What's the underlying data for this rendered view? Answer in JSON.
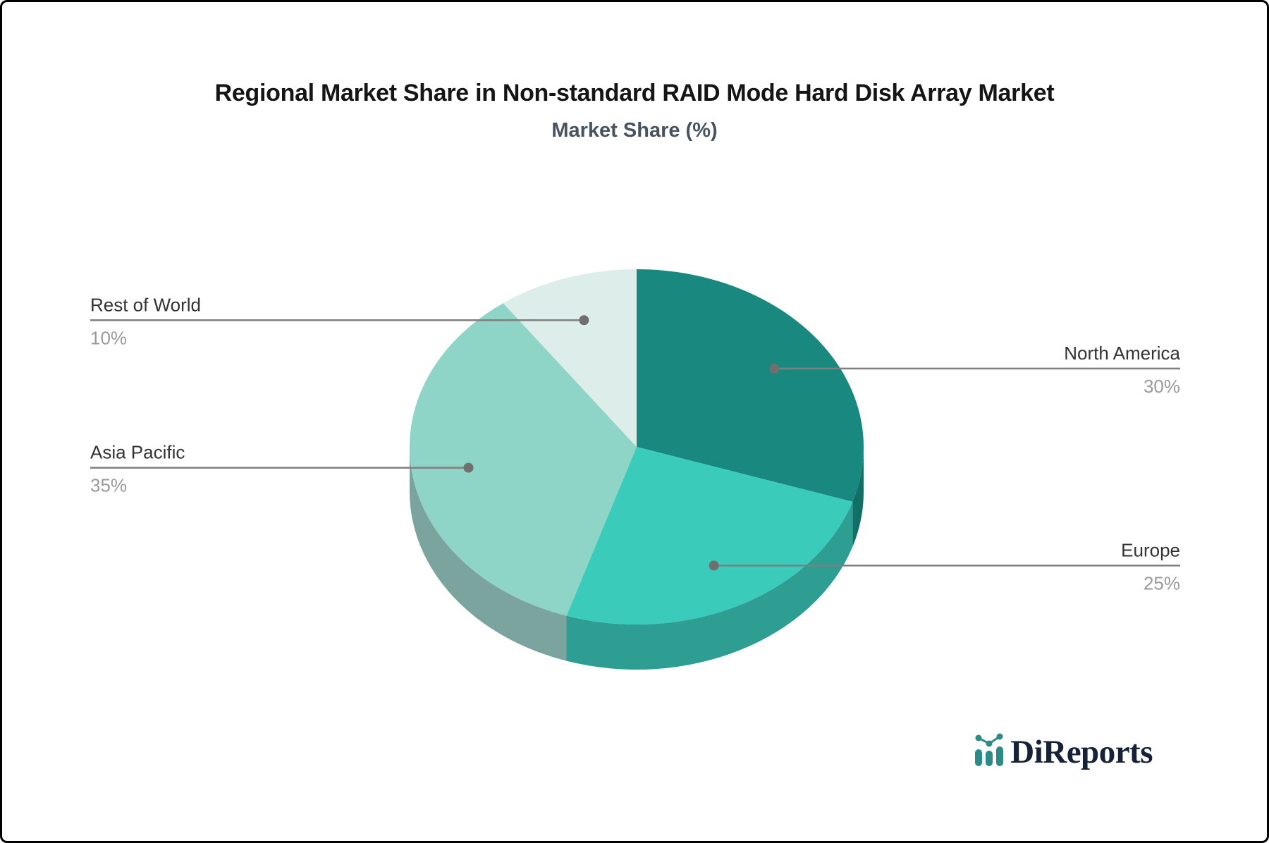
{
  "page": {
    "title": "Regional Market Share in Non-standard RAID Mode Hard Disk Array Market",
    "subtitle": "Market Share (%)"
  },
  "brand": {
    "logo_text": "DiReports",
    "logo_icon": "bar-line-chart-icon",
    "logo_text_color": "#152238",
    "logo_icon_color": "#2b8c87"
  },
  "chart_data": {
    "type": "pie",
    "title": "Regional Market Share in Non-standard RAID Mode Hard Disk Array Market",
    "subtitle": "Market Share (%)",
    "unit": "%",
    "effect": "3d",
    "direction": "clockwise",
    "start_angle_deg": 0,
    "legend_position": "callout-labels",
    "slices": [
      {
        "label": "North America",
        "value": 30,
        "display": "30%",
        "color": "#19897f",
        "side_color": "#116f67"
      },
      {
        "label": "Europe",
        "value": 25,
        "display": "25%",
        "color": "#3acbba",
        "side_color": "#2d9e91"
      },
      {
        "label": "Asia Pacific",
        "value": 35,
        "display": "35%",
        "color": "#8ed4c7",
        "side_color": "#7aa49d"
      },
      {
        "label": "Rest of World",
        "value": 10,
        "display": "10%",
        "color": "#ddeeea",
        "side_color": null
      }
    ],
    "label_color": "#333333",
    "value_color": "#9a9a9a",
    "leader_line_color": "#7f7f7f",
    "leader_dot_color": "#6f6f6f"
  }
}
